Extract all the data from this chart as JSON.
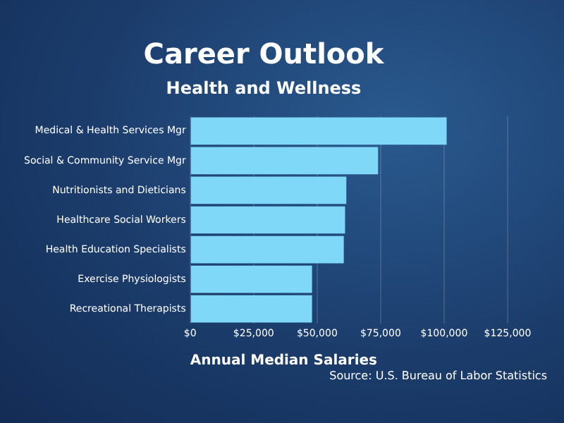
{
  "chart_data": {
    "type": "bar",
    "orientation": "horizontal",
    "title": "Career Outlook",
    "subtitle": "Health and Wellness",
    "xlabel": "Annual Median Salaries",
    "categories": [
      "Medical & Health Services Mgr",
      "Social & Community Service Mgr",
      "Nutritionists and Dieticians",
      "Healthcare Social Workers",
      "Health Education Specialists",
      "Exercise Physiologists",
      "Recreational Therapists"
    ],
    "values": [
      101000,
      74000,
      61500,
      61000,
      60500,
      48000,
      48000
    ],
    "color": "#80d8f8",
    "xlim": [
      0,
      125000
    ],
    "xticks": [
      {
        "value": 0,
        "label": "$0"
      },
      {
        "value": 25000,
        "label": "$25,000"
      },
      {
        "value": 50000,
        "label": "$50,000"
      },
      {
        "value": 75000,
        "label": "$75,000"
      },
      {
        "value": 100000,
        "label": "$100,000"
      },
      {
        "value": 125000,
        "label": "$125,000"
      }
    ],
    "grid": "x",
    "annotations": [
      "Source: U.S. Bureau of Labor Statistics"
    ]
  }
}
